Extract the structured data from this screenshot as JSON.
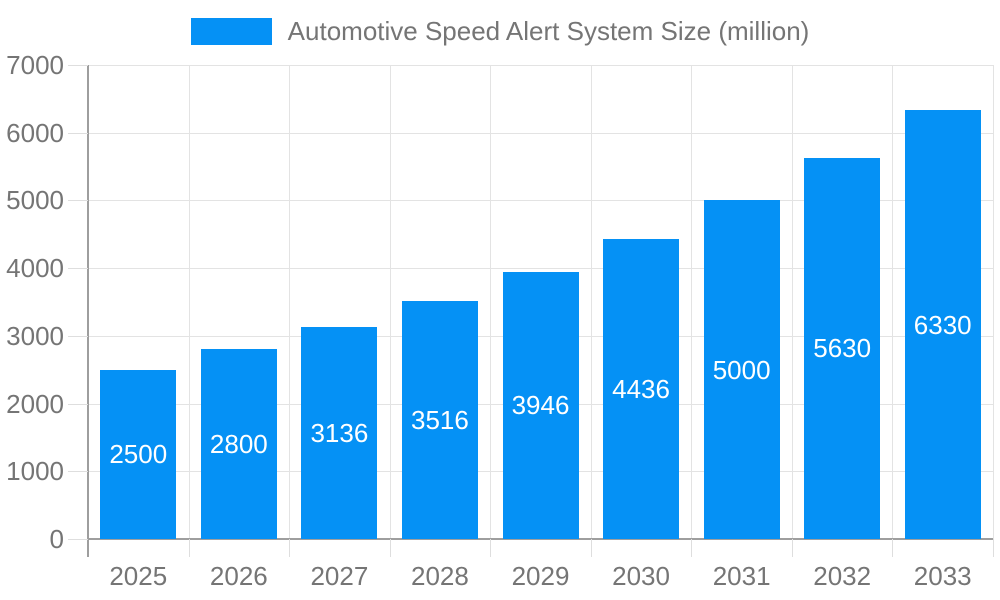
{
  "chart_data": {
    "type": "bar",
    "title": "Automotive Speed Alert System Size (million)",
    "legend": {
      "label": "Automotive Speed Alert System Size (million)",
      "position": "top-center"
    },
    "categories": [
      "2025",
      "2026",
      "2027",
      "2028",
      "2029",
      "2030",
      "2031",
      "2032",
      "2033"
    ],
    "series": [
      {
        "name": "Automotive Speed Alert System Size (million)",
        "values": [
          2500,
          2800,
          3136,
          3516,
          3946,
          4436,
          5000,
          5630,
          6330
        ]
      }
    ],
    "bar_labels": "inside-center-white",
    "xlabel": "",
    "ylabel": "",
    "ylim": [
      0,
      7000
    ],
    "ytick_step": 1000,
    "yticks": [
      0,
      1000,
      2000,
      3000,
      4000,
      5000,
      6000,
      7000
    ],
    "grid": true,
    "colors": {
      "bar": "#0591f5",
      "axis_line": "#9e9e9e",
      "gridline": "#e3e3e3",
      "tick": "#dedede",
      "label_text": "#757575",
      "bar_label_text": "#ffffff",
      "background": "#ffffff"
    }
  }
}
